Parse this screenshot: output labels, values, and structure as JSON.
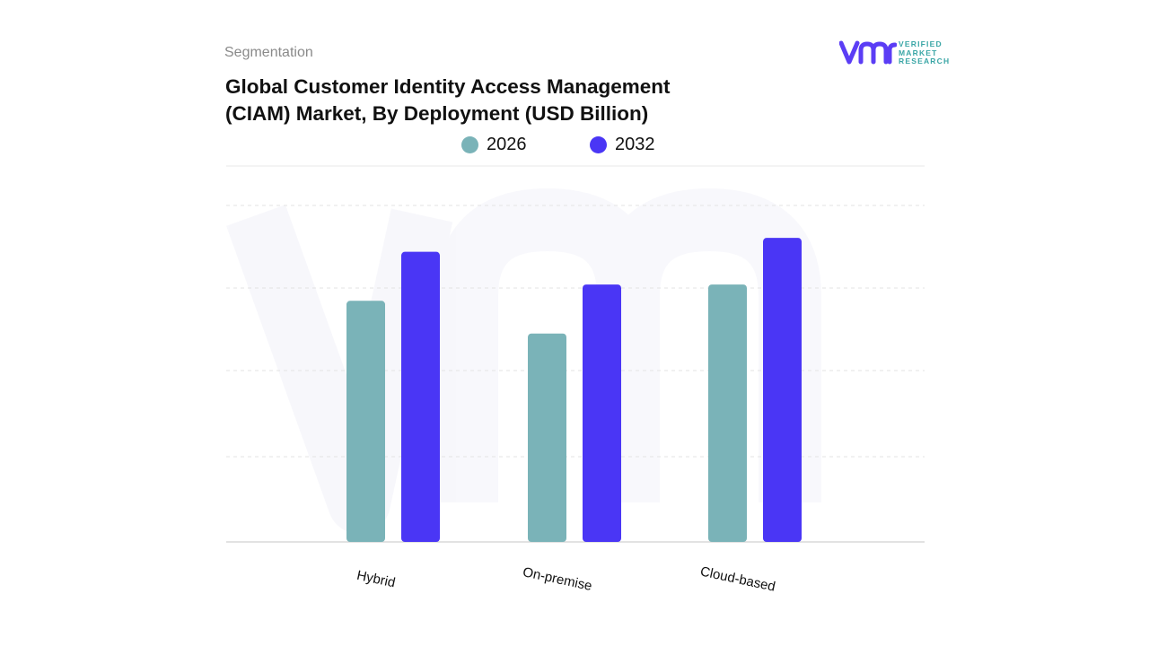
{
  "header": {
    "segmentation": "Segmentation",
    "title_line1": "Global Customer Identity Access Management",
    "title_line2": "(CIAM) Market, By Deployment (USD Billion)"
  },
  "logo": {
    "mark": "vmr",
    "text_line1": "VERIFIED",
    "text_line2": "MARKET",
    "text_line3": "RESEARCH",
    "color_mark": "#5b3df5",
    "color_text": "#3aa6a6"
  },
  "legend": {
    "items": [
      {
        "label": "2026",
        "color": "#7ab3b8"
      },
      {
        "label": "2032",
        "color": "#4a36f5"
      }
    ]
  },
  "chart_data": {
    "type": "bar",
    "title": "Global Customer Identity Access Management (CIAM) Market, By Deployment (USD Billion)",
    "categories": [
      "Hybrid",
      "On-premise",
      "Cloud-based"
    ],
    "series": [
      {
        "name": "2026",
        "color": "#7ab3b8",
        "values": [
          2.95,
          2.55,
          3.15
        ]
      },
      {
        "name": "2032",
        "color": "#4a36f5",
        "values": [
          3.55,
          3.15,
          3.72
        ]
      }
    ],
    "ylim": [
      0,
      4.6
    ],
    "grid": true,
    "y_axis_labels_shown": false,
    "legend_position": "top-center"
  }
}
